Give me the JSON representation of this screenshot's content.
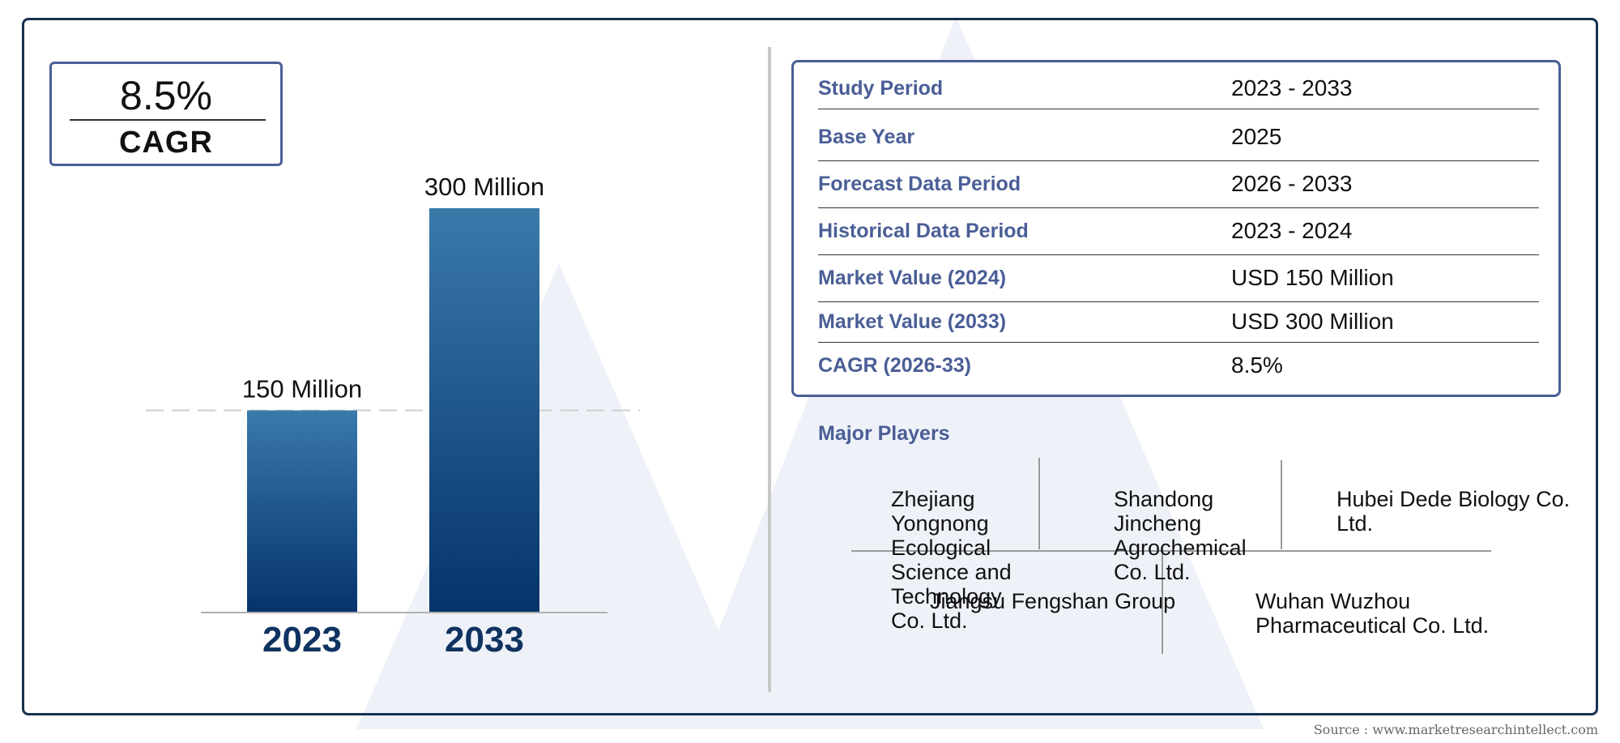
{
  "cagr_box": {
    "value": "8.5%",
    "label": "CAGR"
  },
  "chart_data": {
    "type": "bar",
    "categories": [
      "2023",
      "2033"
    ],
    "values": [
      150,
      300
    ],
    "data_labels": [
      "150 Million",
      "300 Million"
    ],
    "ylim": [
      0,
      300
    ],
    "colors": {
      "bar_top": "#3a7aaa",
      "bar_bottom": "#05336a",
      "category_label": "#0f3361"
    }
  },
  "summary_table": [
    {
      "label": "Study Period",
      "value": "2023 - 2033"
    },
    {
      "label": "Base Year",
      "value": "2025"
    },
    {
      "label": "Forecast Data Period",
      "value": "2026 - 2033"
    },
    {
      "label": "Historical Data Period",
      "value": "2023 - 2024"
    },
    {
      "label": "Market Value (2024)",
      "value": "USD 150 Million"
    },
    {
      "label": "Market Value (2033)",
      "value": "USD 300 Million"
    },
    {
      "label": "CAGR (2026-33)",
      "value": "8.5%"
    }
  ],
  "major_players": {
    "title": "Major Players",
    "players": [
      "Zhejiang Yongnong Ecological Science and Technology Co. Ltd.",
      "Shandong Jincheng Agrochemical Co. Ltd.",
      "Hubei Dede Biology Co. Ltd.",
      "Jiangsu Fengshan Group",
      "Wuhan Wuzhou Pharmaceutical Co. Ltd."
    ]
  },
  "source": "Source : www.marketresearchintellect.com",
  "colors": {
    "frame": "#17324f",
    "accent": "#4a5e96"
  }
}
